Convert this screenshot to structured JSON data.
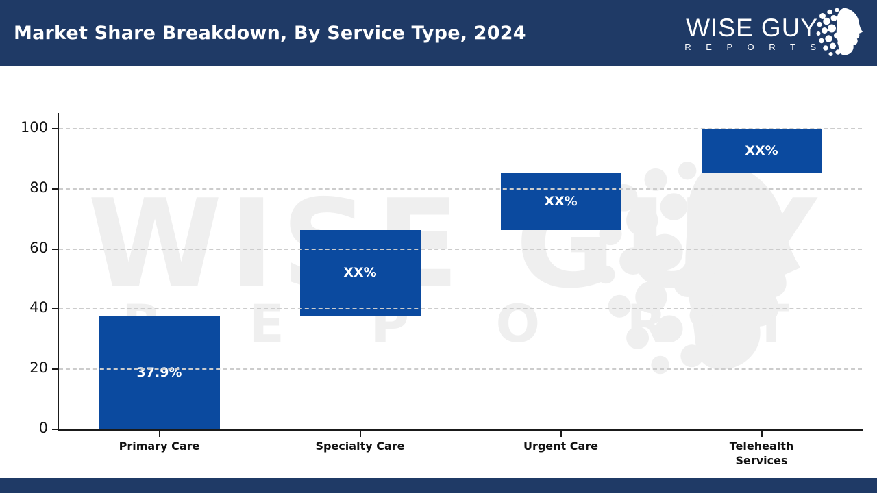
{
  "header": {
    "title": "Market Share Breakdown, By Service Type, 2024",
    "bg_color": "#1F3A66",
    "logo": {
      "line1": "WISE GUY",
      "line2": "R E P O R T S"
    }
  },
  "watermark": {
    "line1": "WISE GUY",
    "line2": "R E P O R T S"
  },
  "chart_data": {
    "type": "bar",
    "subtype": "waterfall",
    "title": "Market Share Breakdown, By Service Type, 2024",
    "xlabel": "",
    "ylabel": "",
    "ylim": [
      0,
      100
    ],
    "yticks": [
      0,
      20,
      40,
      60,
      80,
      100
    ],
    "grid": "horizontal dashed gridlines, drawn over bars",
    "legend": "none",
    "bar_color": "#0B4A9F",
    "value_label_color": "#ffffff",
    "categories": [
      "Primary Care",
      "Specialty Care",
      "Urgent Care",
      "Telehealth Services"
    ],
    "segments": [
      {
        "category": "Primary Care",
        "start": 0,
        "end": 37.9,
        "value_label": "37.9%"
      },
      {
        "category": "Specialty Care",
        "start": 37.9,
        "end": 66.3,
        "value_label": "XX%"
      },
      {
        "category": "Urgent Care",
        "start": 66.3,
        "end": 85.2,
        "value_label": "XX%"
      },
      {
        "category": "Telehealth Services",
        "start": 85.2,
        "end": 100,
        "value_label": "XX%"
      }
    ]
  },
  "footer": {
    "bg_color": "#1F3A66"
  }
}
